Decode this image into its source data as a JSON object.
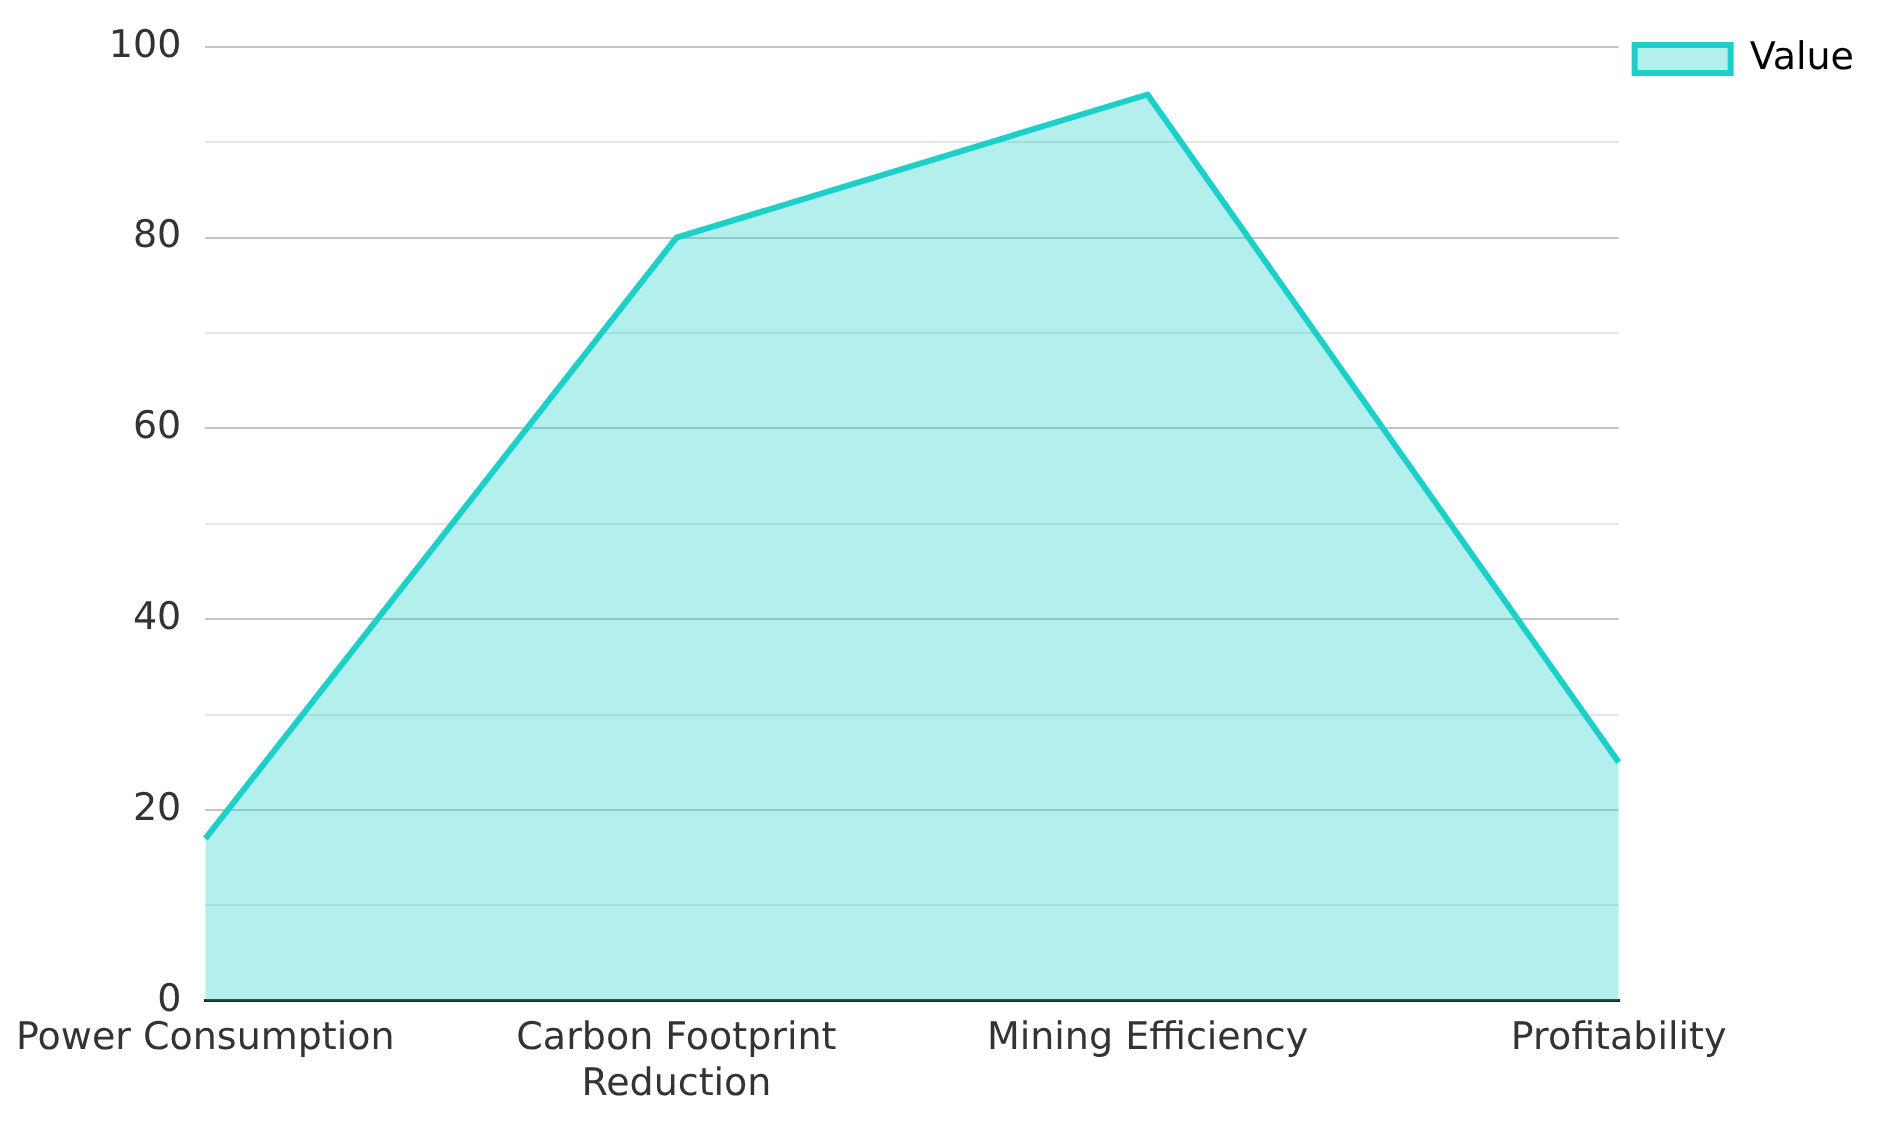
{
  "chart_data": {
    "type": "area",
    "categories": [
      "Power Consumption",
      "Carbon Footprint Reduction",
      "Mining Efficiency",
      "Profitability"
    ],
    "series": [
      {
        "name": "Value",
        "color": "#1ccfc9",
        "values": [
          17,
          80,
          95,
          25
        ]
      }
    ],
    "ylim": [
      0,
      100
    ],
    "yticks": [
      0,
      {
        "value": 10,
        "label": null
      },
      20,
      {
        "value": 30,
        "label": null
      },
      40,
      {
        "value": 50,
        "label": null
      },
      60,
      {
        "value": 70,
        "label": null
      },
      80,
      {
        "value": 90,
        "label": null
      },
      100
    ],
    "grid": "y",
    "legend": "top right",
    "marker": "none",
    "line_style": "solid"
  }
}
